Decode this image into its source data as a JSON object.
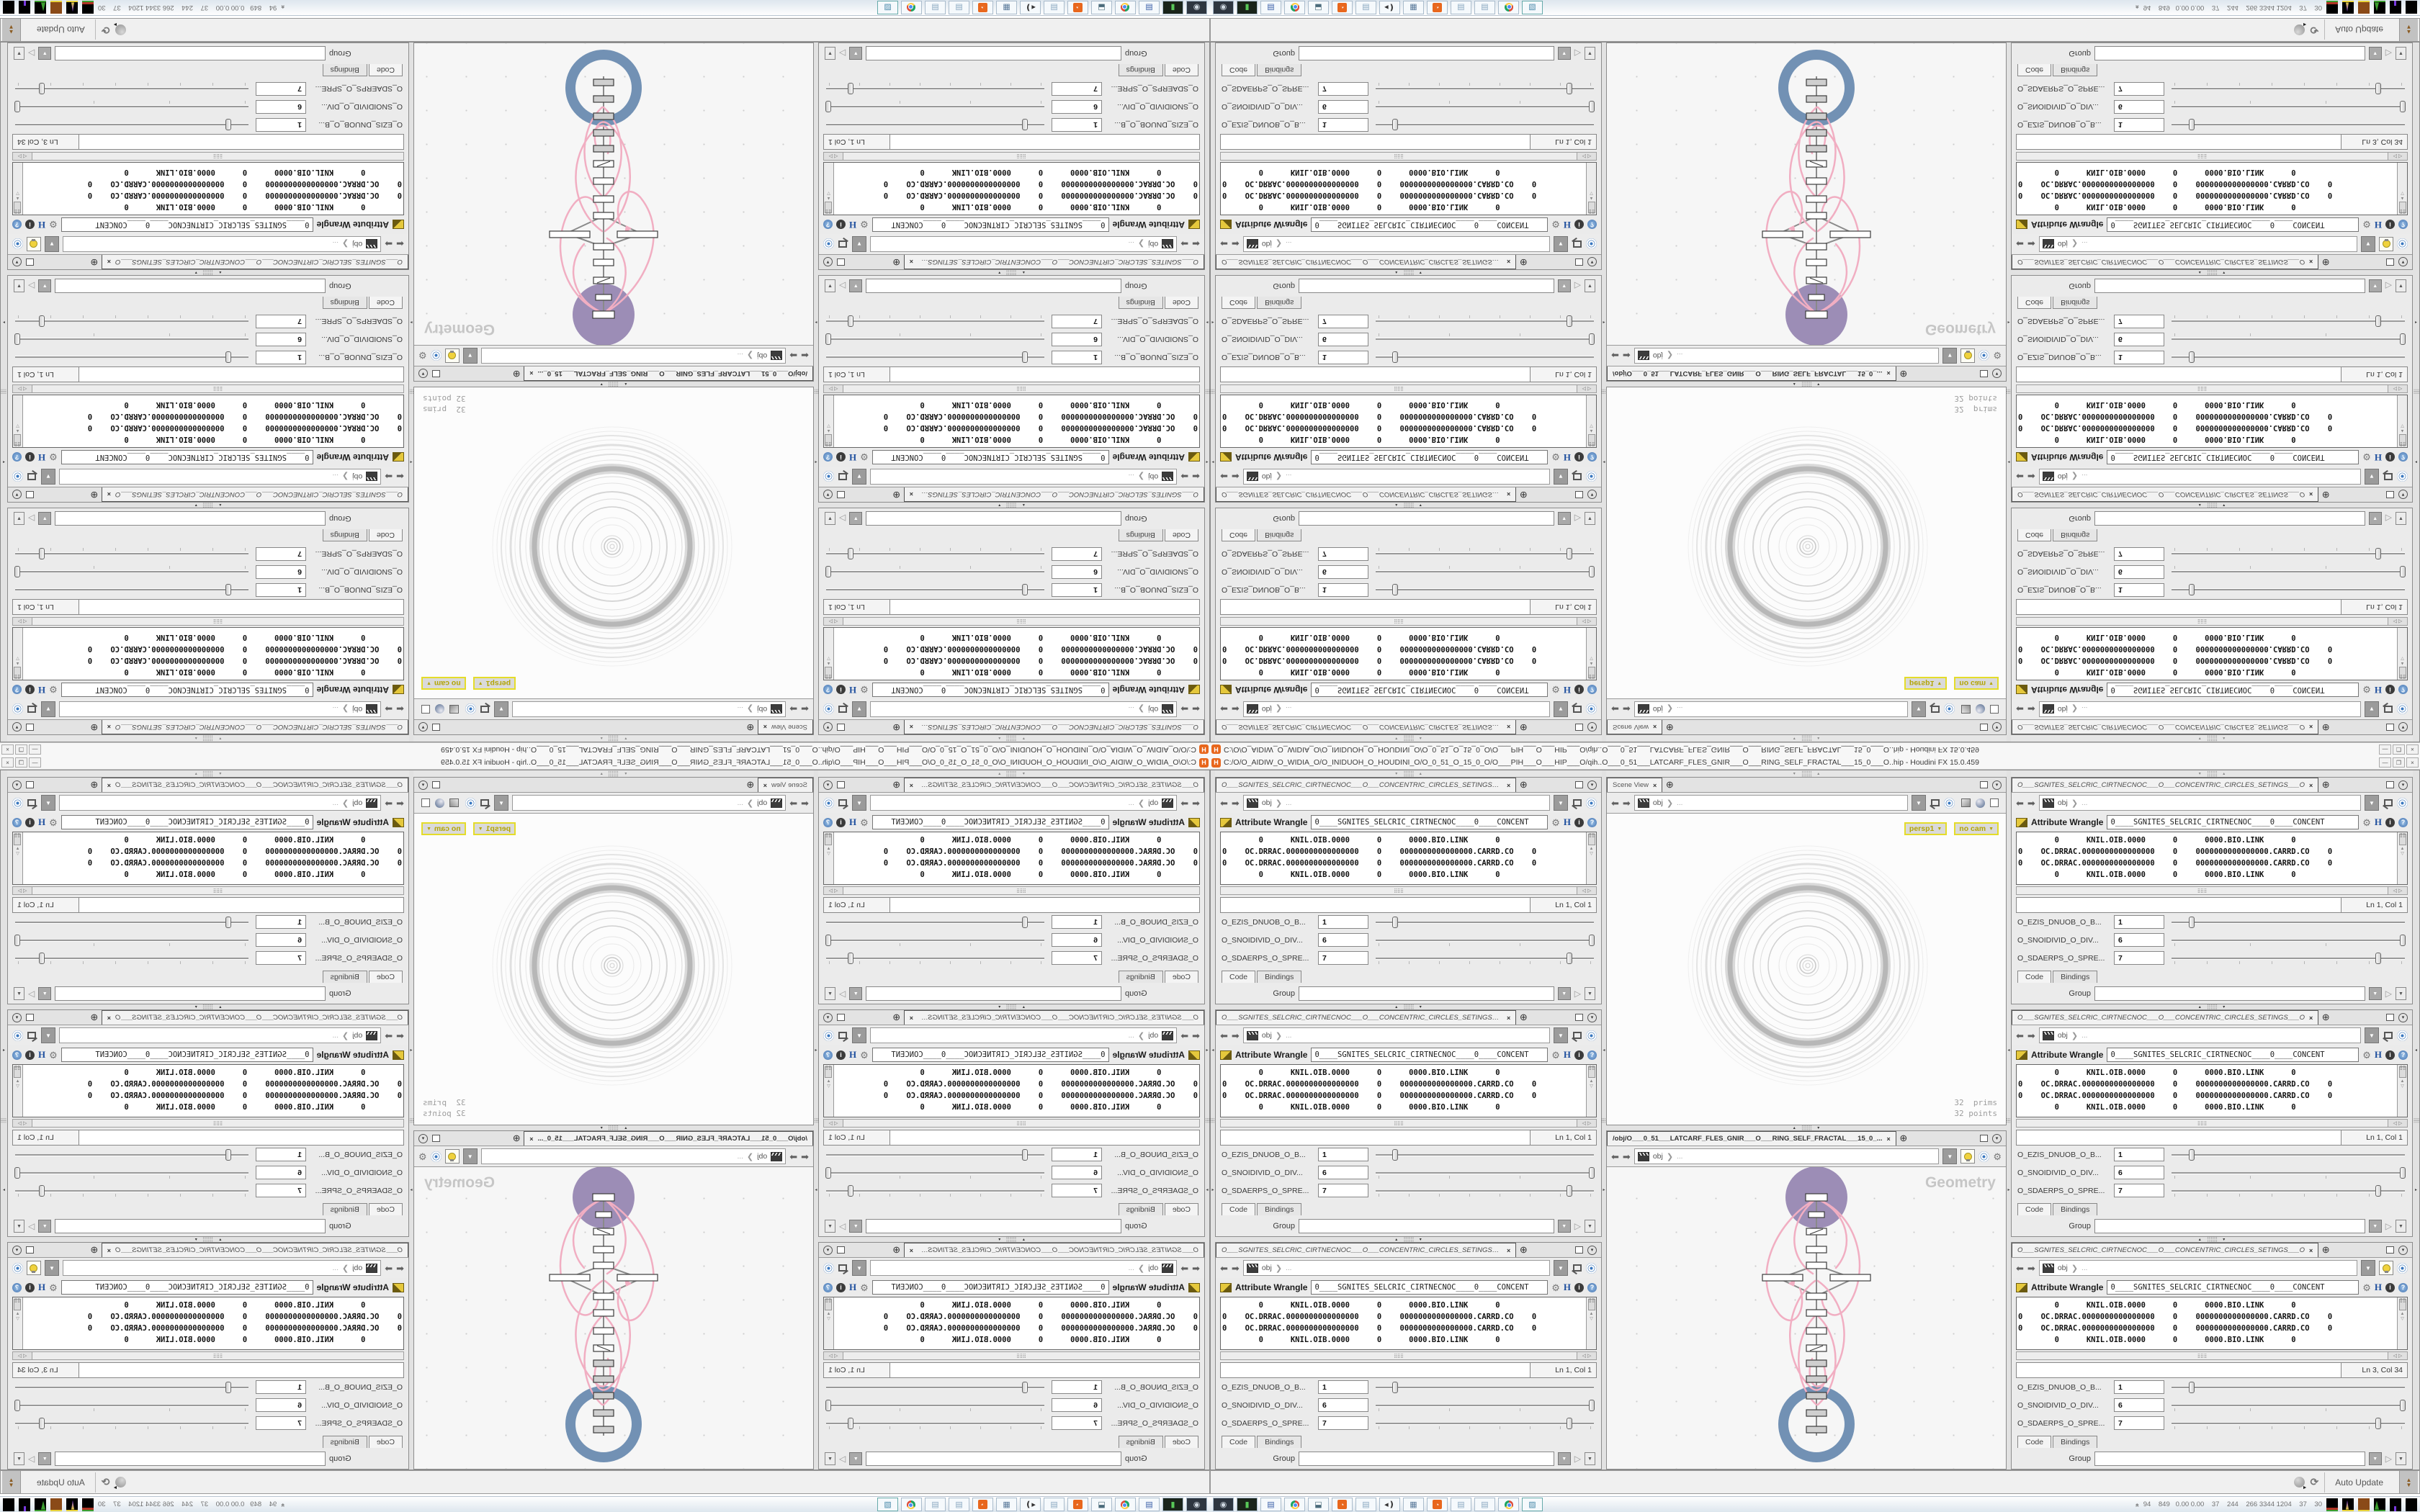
{
  "window": {
    "title": "C:/O/O_AIDIW_O_WIDIA_O/O_INIDUOH_O_HOUDINI_O/O_0_51_O_15_0_O/O___PIH___O___HIP___O/qih..O___0_51___LATCARF_FLES_GNIR___O___RING_SELF_FRACTAL___15_0___O..hip - Houdini FX 15.0.459",
    "logo_glyph": "H",
    "minimize": "—",
    "maximize": "❐",
    "close": "×"
  },
  "pane": {
    "tab_title": "O___SGNITES_SELCRIC_CIRTNECNOC___O___CONCENTRIC_CIRCLES_SETINGS___O",
    "tab_close": "×",
    "new_tab": "⊕",
    "pane_menu": "▾",
    "path_back": "⬅",
    "path_forward": "➡",
    "path_context": "obj",
    "path_chevron": "❯",
    "path_crumb": "...",
    "path_dropdown": "▼",
    "node_type": "Attribute Wrangle",
    "node_name": "0____SGNITES_SELCRIC_CIRTNECNOC____0____CONCENT",
    "gear": "⚙",
    "h_icon": "H",
    "info_icon": "i",
    "help_icon": "?",
    "code_lines": {
      "l1": "        0      KNIL.OIB.0000      0      0000.BIO.LINK      0",
      "l2": "0    OC.DRRAC.0000000000000000    0    0000000000000000.CARRD.CO    0",
      "l3": "0    OC.DRRAC.0000000000000000    0    0000000000000000.CARRD.CO    0",
      "l4": "        0      KNIL.OIB.0000      0      0000.BIO.LINK      0"
    },
    "status_default": "Ln 1, Col 1",
    "status_alt": "Ln 3, Col 34",
    "params": [
      {
        "label": "O_EZIS_DNUOB_O_B...",
        "value": "1"
      },
      {
        "label": "O_SNOIDIVID_O_DIV...",
        "value": "6"
      },
      {
        "label": "O_SDAERPS_O_SPRE...",
        "value": "7"
      }
    ],
    "tab_code": "Code",
    "tab_bindings": "Bindings",
    "group_label": "Group"
  },
  "scene_view": {
    "tab_title": "Scene View",
    "camera_label": "persp1",
    "camera_dd": "▼",
    "no_cam_label": "no cam",
    "stats": "32  prims\n32 points"
  },
  "network": {
    "tab_title": "/obj/O___0_51___LATCARF_FLES_GNIR___O___RING_SELF_FRACTAL___15_0_...",
    "watermark": "Geometry"
  },
  "bottom_bar": {
    "auto_update": "Auto Update"
  },
  "taskbar": {
    "tray_expand": "«",
    "tray_stats": "94    849   0.00 0.00    37    244    266 3344 1204    37    30",
    "icons": [
      "screenshot-tool",
      "drive-utility",
      "floppy-64",
      "chrome",
      "display-settings",
      "houdini",
      "notepad",
      "volume-mixer",
      "calculator",
      "houdini",
      "notepad",
      "notepad",
      "chrome",
      "image-viewer"
    ]
  },
  "colors": {
    "accent_orange": "#e8671d",
    "node_bubble_purple": "#9c8db6",
    "node_ring_blue": "#7291b4",
    "wire_pink": "#f1aec2",
    "camera_label_yellow": "#e4dc2a"
  }
}
